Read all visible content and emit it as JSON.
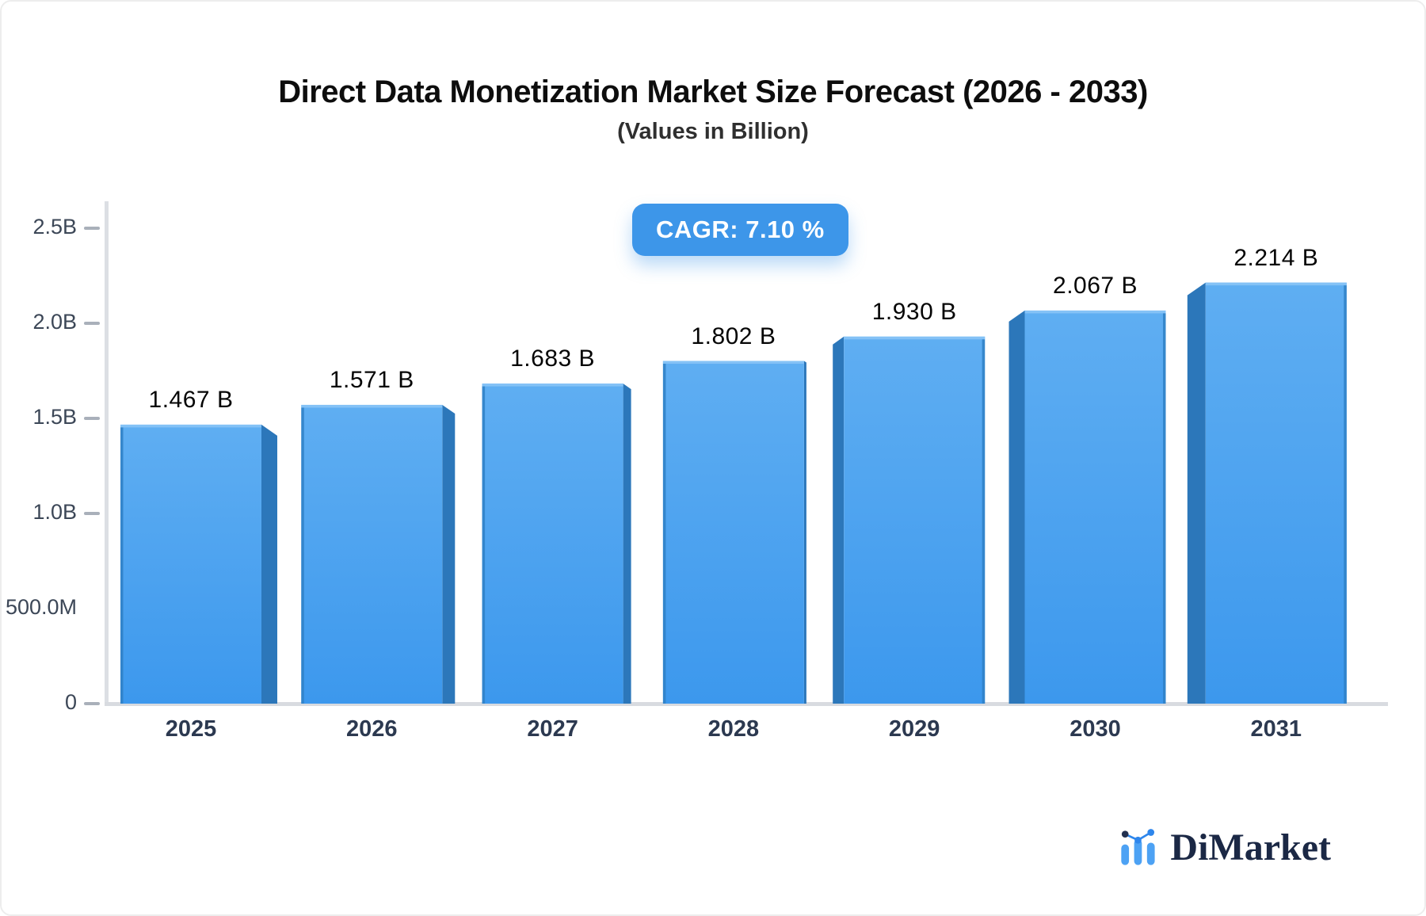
{
  "badge": {
    "label": "CAGR: 7.10 %"
  },
  "logo": {
    "name": "DiMarket",
    "icon": "bar-line-chart-icon"
  },
  "chart_data": {
    "type": "bar",
    "title": "Direct Data Monetization Market Size Forecast (2026 - 2033)",
    "subtitle": "(Values in Billion)",
    "categories": [
      "2025",
      "2026",
      "2027",
      "2028",
      "2029",
      "2030",
      "2031"
    ],
    "values": [
      1.467,
      1.571,
      1.683,
      1.802,
      1.93,
      2.067,
      2.214
    ],
    "bar_labels": [
      "1.467 B",
      "1.571 B",
      "1.683 B",
      "1.802 B",
      "1.930 B",
      "2.067 B",
      "2.214 B"
    ],
    "unit": "Billion USD",
    "xlabel": "",
    "ylabel": "",
    "ylim": [
      0,
      2.5
    ],
    "grid": false,
    "legend": "none",
    "y_ticks": [
      {
        "label": "0",
        "value": 0.0,
        "dash": true
      },
      {
        "label": "500.0M",
        "value": 0.5,
        "dash": false
      },
      {
        "label": "1.0B",
        "value": 1.0,
        "dash": true
      },
      {
        "label": "1.5B",
        "value": 1.5,
        "dash": true
      },
      {
        "label": "2.0B",
        "value": 2.0,
        "dash": true
      },
      {
        "label": "2.5B",
        "value": 2.5,
        "dash": true
      }
    ],
    "colors": {
      "bar_face_top": "#5FAEF2",
      "bar_face_bottom": "#3C98ED",
      "bar_top_highlight": "#84C2F6",
      "bar_side": "#2C77BA",
      "bar_edge_lip": "#2F80C6",
      "axis": "#D8DBE0",
      "badge_bg": "#3D96E9",
      "logo_navy": "#1B2845",
      "logo_blue": "#4DA2F4"
    }
  }
}
